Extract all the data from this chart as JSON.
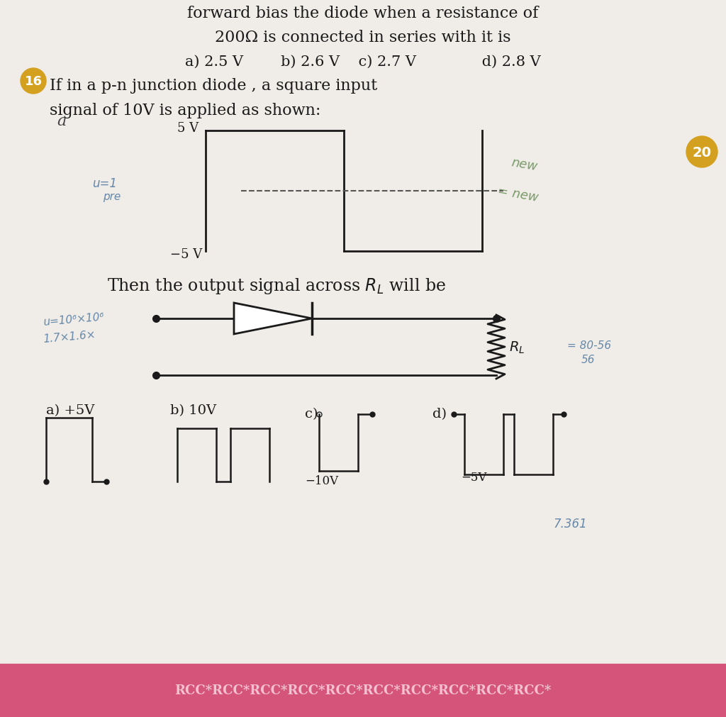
{
  "bg_color": "#f0ede8",
  "pink_banner_color": "#d4547a",
  "pink_banner_text": "RCC*RCC*RCC*RCC*RCC*RCC*RCC*RCC*RCC*RCC*",
  "pink_banner_text_color": "#f5c0d0",
  "title_line1": "forward bias the diode when a resistance of",
  "title_line2": "200Ω is connected in series with it is",
  "options_line": "a) 2.5 V     b) 2.6 V   c) 2.7 V       d) 2.8 V",
  "q16_line1": "16. If in a p-n junction diode , a square input",
  "q16_line2": "    signal of 10V is applied as shown:",
  "then_line": "Then the output signal across $R_L$ will be",
  "handwriting_color": "#7a9a6a",
  "number_color": "#d4a020",
  "circle_20_color": "#d4a020",
  "text_color": "#1a1a1a",
  "dashed_line_color": "#555555",
  "circuit_color": "#1a1a1a",
  "waveform_color": "#1a1a1a"
}
